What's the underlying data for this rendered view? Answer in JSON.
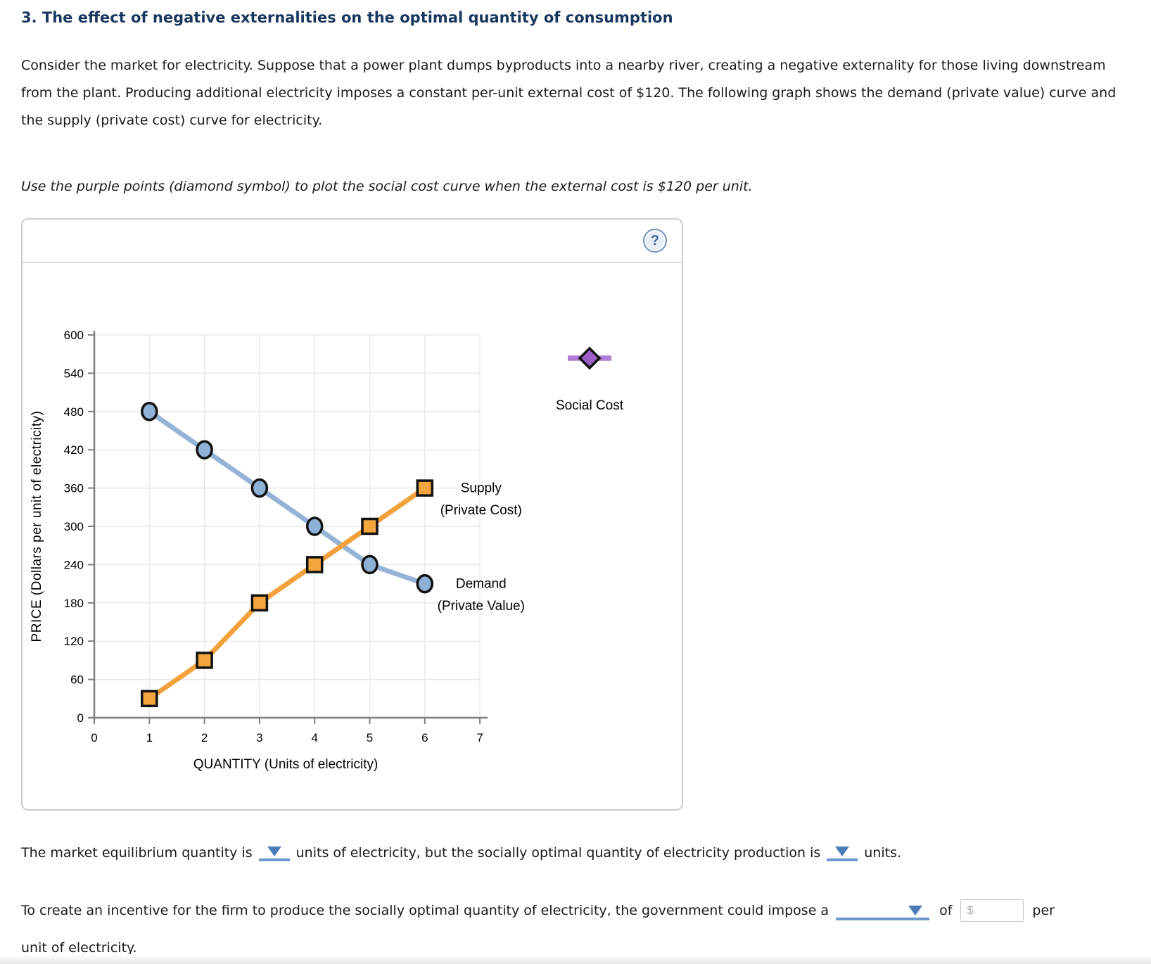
{
  "header": {
    "title": "3. The effect of negative externalities on the optimal quantity of consumption"
  },
  "intro": {
    "text": "Consider the market for electricity. Suppose that a power plant dumps byproducts into a nearby river, creating a negative externality for those living downstream from the plant. Producing additional electricity imposes a constant per-unit external cost of $120. The following graph shows the demand (private value) curve and the supply (private cost) curve for electricity."
  },
  "instruction": {
    "text": "Use the purple points (diamond symbol) to plot the social cost curve when the external cost is $120 per unit."
  },
  "panel": {
    "help_label": "?"
  },
  "chart_data": {
    "type": "line",
    "xlabel": "QUANTITY (Units of electricity)",
    "ylabel": "PRICE (Dollars per unit of electricity)",
    "xlim": [
      0,
      7
    ],
    "ylim": [
      0,
      600
    ],
    "xticks": [
      0,
      1,
      2,
      3,
      4,
      5,
      6,
      7
    ],
    "yticks": [
      0,
      60,
      120,
      180,
      240,
      300,
      360,
      420,
      480,
      540,
      600
    ],
    "grid": true,
    "external_cost_per_unit": 120,
    "series": [
      {
        "name": "Demand (Private Value)",
        "label_lines": [
          "Demand",
          "(Private Value)"
        ],
        "marker": "circle",
        "line_color": "#94b3d7",
        "marker_fill": "#8fb1d8",
        "x": [
          1,
          2,
          3,
          4,
          5,
          6
        ],
        "values": [
          480,
          420,
          360,
          300,
          240,
          210
        ],
        "legend_only": false
      },
      {
        "name": "Supply (Private Cost)",
        "label_lines": [
          "Supply",
          "(Private Cost)"
        ],
        "marker": "square",
        "line_color": "#f2a13c",
        "marker_fill": "#f4a63e",
        "x": [
          1,
          2,
          3,
          4,
          5,
          6
        ],
        "values": [
          30,
          90,
          180,
          240,
          300,
          360
        ],
        "legend_only": false
      },
      {
        "name": "Social Cost",
        "label_lines": [
          "Social Cost"
        ],
        "marker": "diamond",
        "line_color": "#b07cd8",
        "marker_fill": "#9d5fc6",
        "x": [],
        "values": [],
        "legend_only": true
      }
    ],
    "legend": {
      "label": "Social Cost",
      "position": "right-of-plot"
    }
  },
  "questions": {
    "q1_part1": "The market equilibrium quantity is",
    "q1_part2": "units of electricity, but the socially optimal quantity of electricity production is",
    "q1_part3": "units.",
    "q2_part1": "To create an incentive for the firm to produce the socially optimal quantity of electricity, the government could impose a",
    "q2_of": "of",
    "q2_input_placeholder": "$",
    "q2_per": "per",
    "q2_line2": "unit of electricity."
  }
}
